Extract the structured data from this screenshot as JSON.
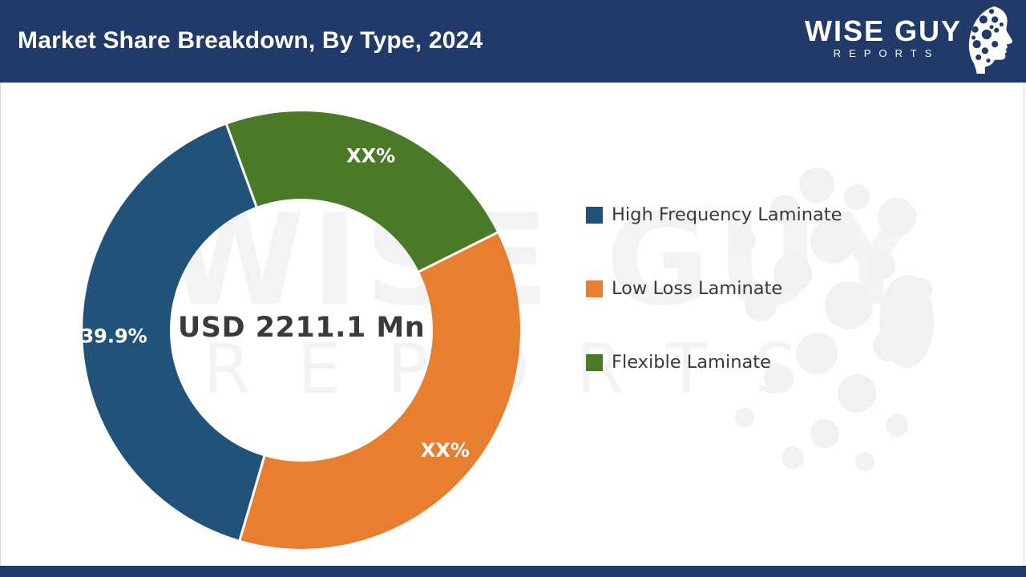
{
  "header": {
    "title": "Market Share Breakdown, By Type, 2024",
    "bg_color": "#213a69",
    "logo": {
      "line1": "WISE GUY",
      "line2": "REPORTS"
    }
  },
  "watermark": {
    "line1": "WISE GUY",
    "line2": "REPORTS"
  },
  "chart_data": {
    "type": "pie",
    "subtype": "donut",
    "title": "Market Share Breakdown, By Type, 2024",
    "center_label": "USD 2211.1 Mn",
    "start_angle_deg": 110,
    "direction": "counterclockwise",
    "legend_position": "right",
    "segments": [
      {
        "name": "High Frequency Laminate",
        "share_pct": 39.9,
        "label": "39.9%",
        "color": "#20527a"
      },
      {
        "name": "Low Loss Laminate",
        "share_pct": 36.9,
        "label": "XX%",
        "color": "#e87e2f"
      },
      {
        "name": "Flexible Laminate",
        "share_pct": 23.2,
        "label": "XX%",
        "color": "#4a7a28"
      }
    ]
  },
  "footer": {
    "bg_color": "#213a69"
  }
}
